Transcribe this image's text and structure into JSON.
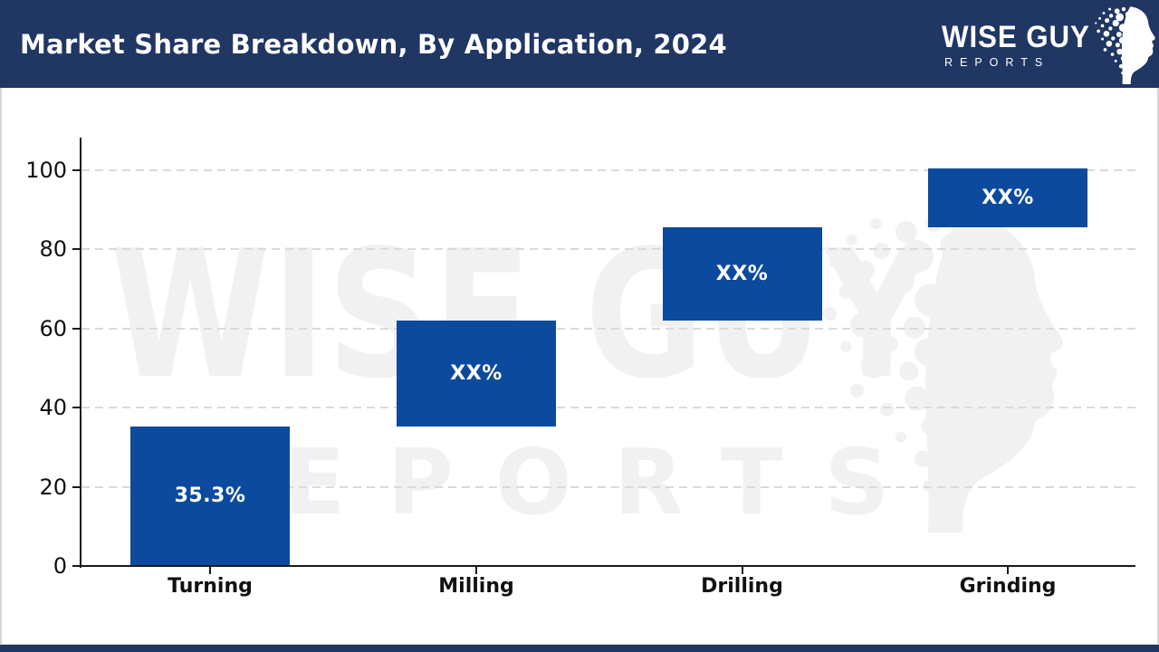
{
  "header": {
    "title": "Market Share Breakdown, By Application, 2024"
  },
  "logo": {
    "name": "WISE GUY",
    "subtitle": "REPORTS",
    "head_icon": "dotted-head-profile"
  },
  "watermark": {
    "name": "WISE GUY",
    "subtitle": "REPORTS",
    "head_icon": "dotted-head-profile"
  },
  "colors": {
    "header_navy": "#203663",
    "bar_blue": "#0c4a9e",
    "grid_gray": "#dadada",
    "watermark_gray": "#f1f1f1"
  },
  "chart_data": {
    "type": "bar",
    "subtype": "floating-waterfall",
    "title": "Market Share Breakdown, By Application, 2024",
    "xlabel": "",
    "ylabel": "",
    "categories": [
      "Turning",
      "Milling",
      "Drilling",
      "Grinding"
    ],
    "segments": [
      {
        "category": "Turning",
        "start": 0,
        "end": 35.3,
        "label": "35.3%"
      },
      {
        "category": "Milling",
        "start": 35.3,
        "end": 62.0,
        "label": "XX%"
      },
      {
        "category": "Drilling",
        "start": 62.0,
        "end": 85.5,
        "label": "XX%"
      },
      {
        "category": "Grinding",
        "start": 85.5,
        "end": 100.3,
        "label": "XX%"
      }
    ],
    "yticks": [
      0,
      20,
      40,
      60,
      80,
      100
    ],
    "ylim": [
      0,
      106
    ],
    "grid": "horizontal-dashed",
    "legend": "none",
    "bar_color": "#0c4a9e",
    "bar_label_color": "#ffffff"
  }
}
